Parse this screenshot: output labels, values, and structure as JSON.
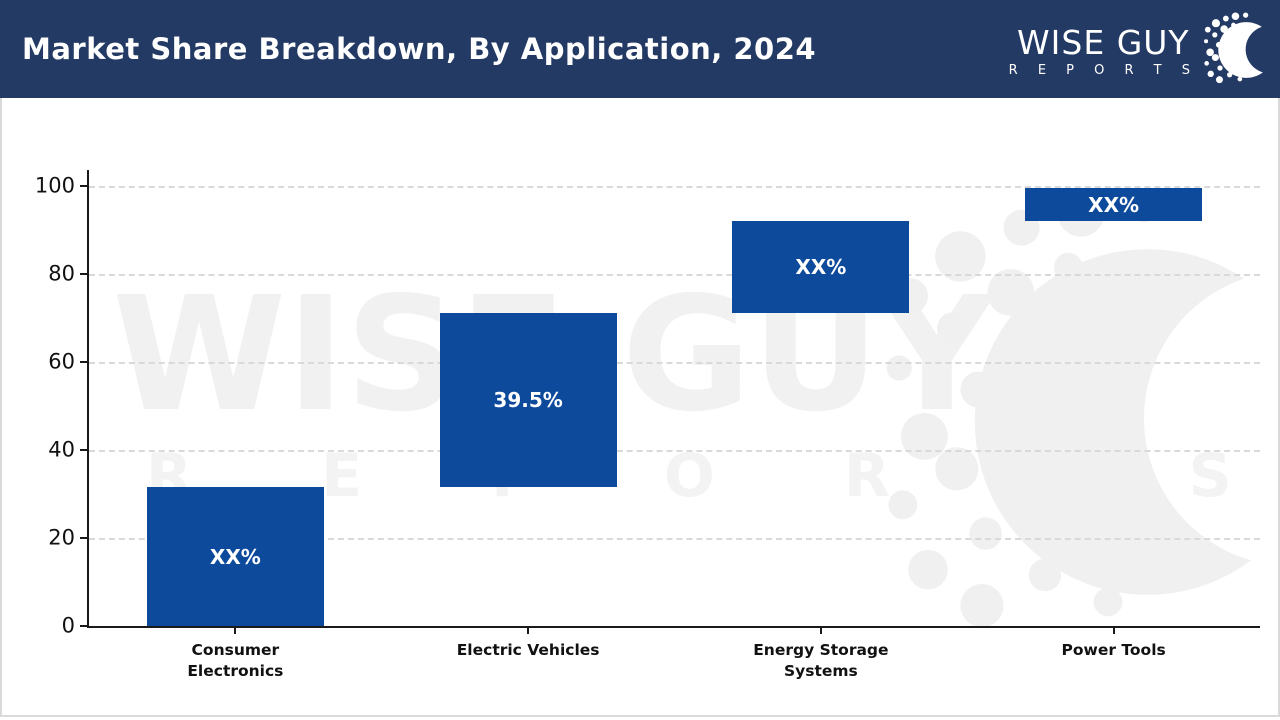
{
  "header": {
    "title": "Market Share Breakdown, By Application, 2024",
    "logo": {
      "name": "WISE GUY",
      "sub": "R E P O R T S"
    }
  },
  "watermark": {
    "line1": "WISE GUY",
    "line2": "R E P O R T S"
  },
  "chart_data": {
    "type": "bar",
    "subtype": "waterfall-floating-bars",
    "title": "Market Share Breakdown, By Application, 2024",
    "categories": [
      "Consumer Electronics",
      "Electric Vehicles",
      "Energy Storage Systems",
      "Power Tools"
    ],
    "category_lines": [
      [
        "Consumer",
        "Electronics"
      ],
      [
        "Electric Vehicles"
      ],
      [
        "Energy Storage",
        "Systems"
      ],
      [
        "Power Tools"
      ]
    ],
    "bars": [
      {
        "label": "XX%",
        "start": 0,
        "end": 31.5
      },
      {
        "label": "39.5%",
        "start": 31.5,
        "end": 71
      },
      {
        "label": "XX%",
        "start": 71,
        "end": 92
      },
      {
        "label": "XX%",
        "start": 92,
        "end": 99.5
      }
    ],
    "xlabel": "",
    "ylabel": "",
    "yticks": [
      0,
      20,
      40,
      60,
      80,
      100
    ],
    "ylim": [
      0,
      103.6
    ],
    "grid": "dashed-horizontal",
    "legend": "none",
    "bar_color": "#0d4a9b"
  },
  "colors": {
    "header_bg": "#233a64",
    "bar": "#0d4a9b",
    "grid": "#d9d9d9",
    "axis": "#1a1a1a",
    "watermark": "#f1f1f1"
  }
}
